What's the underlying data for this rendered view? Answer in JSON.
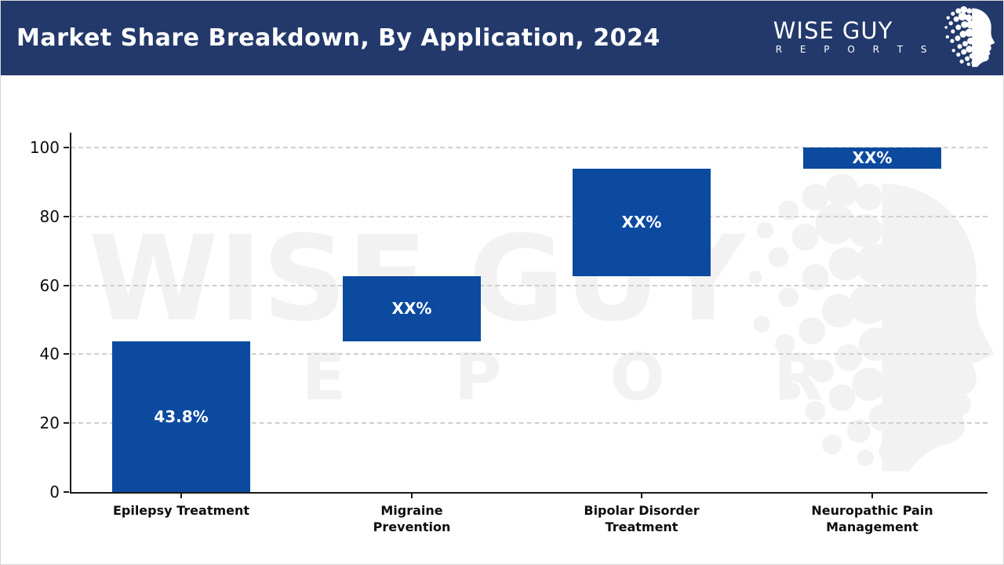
{
  "header": {
    "title": "Market Share Breakdown, By Application, 2024",
    "logo": {
      "primary": "WISE GUY",
      "secondary": "R E P O R T S"
    }
  },
  "watermark": {
    "line1": "WISE GUY",
    "line2": "R E P O R T S"
  },
  "colors": {
    "header_bg": "#23396b",
    "bar": "#0b4a9e",
    "grid": "#cfcfcf",
    "axis": "#1a1a1a",
    "watermark": "#f2f2f3",
    "bar_label_text": "#ffffff",
    "title_text": "#ffffff"
  },
  "chart_data": {
    "type": "bar",
    "subtype": "waterfall-floating-bars",
    "title": "Market Share Breakdown, By Application, 2024",
    "categories": [
      "Epilepsy Treatment",
      "Migraine Prevention",
      "Bipolar Disorder Treatment",
      "Neuropathic Pain Management"
    ],
    "category_lines": [
      [
        "Epilepsy Treatment"
      ],
      [
        "Migraine",
        "Prevention"
      ],
      [
        "Bipolar Disorder",
        "Treatment"
      ],
      [
        "Neuropathic Pain",
        "Management"
      ]
    ],
    "segments": [
      {
        "category": "Epilepsy Treatment",
        "start": 0,
        "end": 43.8,
        "label": "43.8%"
      },
      {
        "category": "Migraine Prevention",
        "start": 43.8,
        "end": 62.6,
        "label": "XX%"
      },
      {
        "category": "Bipolar Disorder Treatment",
        "start": 62.6,
        "end": 93.9,
        "label": "XX%"
      },
      {
        "category": "Neuropathic Pain Management",
        "start": 93.9,
        "end": 100,
        "label": "XX%"
      }
    ],
    "ylim": [
      0,
      100
    ],
    "yticks": [
      0,
      20,
      40,
      60,
      80,
      100
    ],
    "grid": "horizontal-dashed",
    "legend": "none"
  }
}
